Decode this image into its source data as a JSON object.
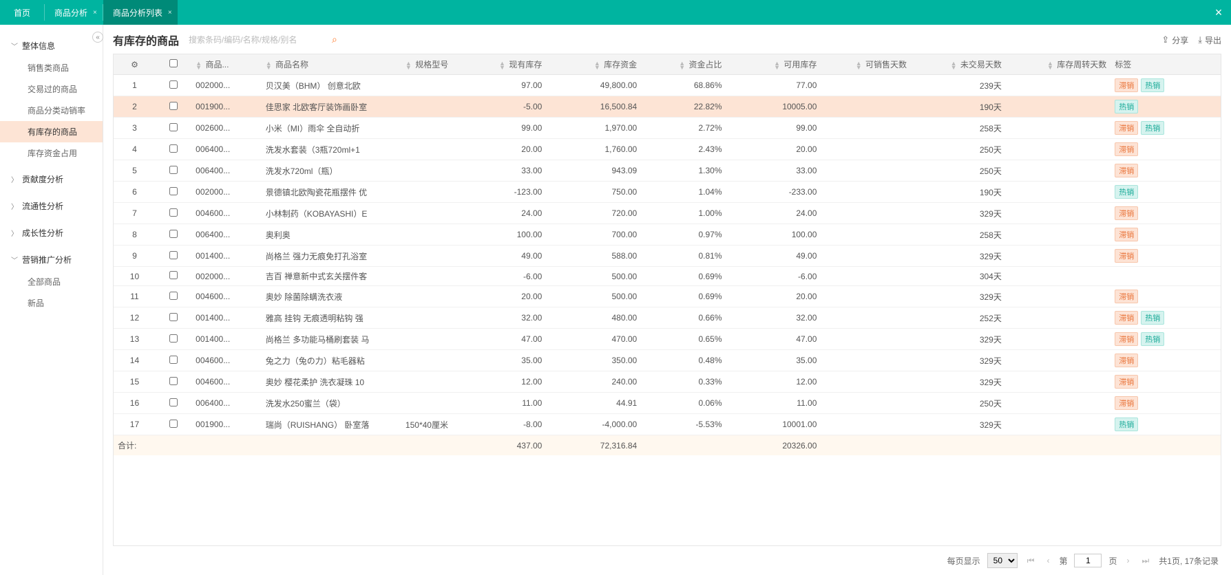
{
  "colors": {
    "tabbar_bg": "#00b4a0",
    "tab_active_bg": "#008a78",
    "side_active_bg": "#fde4d5",
    "row_highlight_bg": "#fde4d5",
    "footer_bg": "#fff8ef",
    "search_icon": "#ff7a2a",
    "tag_orange_bg": "#fde3d5",
    "tag_orange_fg": "#e9743a",
    "tag_teal_bg": "#d6f3ef",
    "tag_teal_fg": "#1aaa98"
  },
  "tabs": {
    "home": "首页",
    "items": [
      {
        "label": "商品分析",
        "active": false
      },
      {
        "label": "商品分析列表",
        "active": true
      }
    ]
  },
  "sidebar": {
    "groups": [
      {
        "title": "整体信息",
        "expanded": true,
        "items": [
          {
            "label": "销售类商品"
          },
          {
            "label": "交易过的商品"
          },
          {
            "label": "商品分类动销率"
          },
          {
            "label": "有库存的商品",
            "active": true
          },
          {
            "label": "库存资金占用"
          }
        ]
      },
      {
        "title": "贡献度分析",
        "expanded": false,
        "items": []
      },
      {
        "title": "流通性分析",
        "expanded": false,
        "items": []
      },
      {
        "title": "成长性分析",
        "expanded": false,
        "items": []
      },
      {
        "title": "营销推广分析",
        "expanded": true,
        "items": [
          {
            "label": "全部商品"
          },
          {
            "label": "新品"
          }
        ]
      }
    ]
  },
  "page": {
    "title": "有库存的商品",
    "search_placeholder": "搜索条码/编码/名称/规格/别名",
    "share": "分享",
    "export": "导出"
  },
  "table": {
    "columns": {
      "gear": "⚙",
      "code": "商品...",
      "name": "商品名称",
      "spec": "规格型号",
      "stock": "现有库存",
      "fund": "库存资金",
      "pct": "资金占比",
      "avail": "可用库存",
      "selldays": "可销售天数",
      "notxdays": "未交易天数",
      "turndays": "库存周转天数",
      "tags": "标签"
    },
    "rows": [
      {
        "idx": "1",
        "code": "002000...",
        "name": "贝汉美（BHM） 创意北欧",
        "spec": "",
        "stock": "97.00",
        "fund": "49,800.00",
        "pct": "68.86%",
        "avail": "77.00",
        "selldays": "",
        "notxdays": "239天",
        "turndays": "",
        "tags": [
          "滞销",
          "热销"
        ]
      },
      {
        "idx": "2",
        "code": "001900...",
        "name": "佳思家 北欧客厅装饰画卧室",
        "spec": "",
        "stock": "-5.00",
        "fund": "16,500.84",
        "pct": "22.82%",
        "avail": "10005.00",
        "selldays": "",
        "notxdays": "190天",
        "turndays": "",
        "tags": [
          "热销"
        ],
        "highlight": true
      },
      {
        "idx": "3",
        "code": "002600...",
        "name": "小米（MI）雨伞 全自动折",
        "spec": "",
        "stock": "99.00",
        "fund": "1,970.00",
        "pct": "2.72%",
        "avail": "99.00",
        "selldays": "",
        "notxdays": "258天",
        "turndays": "",
        "tags": [
          "滞销",
          "热销"
        ]
      },
      {
        "idx": "4",
        "code": "006400...",
        "name": "洗发水套装（3瓶720ml+1",
        "spec": "",
        "stock": "20.00",
        "fund": "1,760.00",
        "pct": "2.43%",
        "avail": "20.00",
        "selldays": "",
        "notxdays": "250天",
        "turndays": "",
        "tags": [
          "滞销"
        ]
      },
      {
        "idx": "5",
        "code": "006400...",
        "name": "洗发水720ml（瓶）",
        "spec": "",
        "stock": "33.00",
        "fund": "943.09",
        "pct": "1.30%",
        "avail": "33.00",
        "selldays": "",
        "notxdays": "250天",
        "turndays": "",
        "tags": [
          "滞销"
        ]
      },
      {
        "idx": "6",
        "code": "002000...",
        "name": "景德镇北欧陶瓷花瓶摆件 优",
        "spec": "",
        "stock": "-123.00",
        "fund": "750.00",
        "pct": "1.04%",
        "avail": "-233.00",
        "selldays": "",
        "notxdays": "190天",
        "turndays": "",
        "tags": [
          "热销"
        ]
      },
      {
        "idx": "7",
        "code": "004600...",
        "name": "小林制药（KOBAYASHI）E",
        "spec": "",
        "stock": "24.00",
        "fund": "720.00",
        "pct": "1.00%",
        "avail": "24.00",
        "selldays": "",
        "notxdays": "329天",
        "turndays": "",
        "tags": [
          "滞销"
        ]
      },
      {
        "idx": "8",
        "code": "006400...",
        "name": "奥利奥",
        "spec": "",
        "stock": "100.00",
        "fund": "700.00",
        "pct": "0.97%",
        "avail": "100.00",
        "selldays": "",
        "notxdays": "258天",
        "turndays": "",
        "tags": [
          "滞销"
        ]
      },
      {
        "idx": "9",
        "code": "001400...",
        "name": "尚格兰 强力无痕免打孔浴室",
        "spec": "",
        "stock": "49.00",
        "fund": "588.00",
        "pct": "0.81%",
        "avail": "49.00",
        "selldays": "",
        "notxdays": "329天",
        "turndays": "",
        "tags": [
          "滞销"
        ]
      },
      {
        "idx": "10",
        "code": "002000...",
        "name": "吉百 禅意新中式玄关摆件客",
        "spec": "",
        "stock": "-6.00",
        "fund": "500.00",
        "pct": "0.69%",
        "avail": "-6.00",
        "selldays": "",
        "notxdays": "304天",
        "turndays": "",
        "tags": []
      },
      {
        "idx": "11",
        "code": "004600...",
        "name": "奥妙 除菌除螨洗衣液",
        "spec": "",
        "stock": "20.00",
        "fund": "500.00",
        "pct": "0.69%",
        "avail": "20.00",
        "selldays": "",
        "notxdays": "329天",
        "turndays": "",
        "tags": [
          "滞销"
        ]
      },
      {
        "idx": "12",
        "code": "001400...",
        "name": "雅高 挂钩 无痕透明粘钩 强",
        "spec": "",
        "stock": "32.00",
        "fund": "480.00",
        "pct": "0.66%",
        "avail": "32.00",
        "selldays": "",
        "notxdays": "252天",
        "turndays": "",
        "tags": [
          "滞销",
          "热销"
        ]
      },
      {
        "idx": "13",
        "code": "001400...",
        "name": "尚格兰 多功能马桶刷套装 马",
        "spec": "",
        "stock": "47.00",
        "fund": "470.00",
        "pct": "0.65%",
        "avail": "47.00",
        "selldays": "",
        "notxdays": "329天",
        "turndays": "",
        "tags": [
          "滞销",
          "热销"
        ]
      },
      {
        "idx": "14",
        "code": "004600...",
        "name": "兔之力（兔の力）粘毛器粘",
        "spec": "",
        "stock": "35.00",
        "fund": "350.00",
        "pct": "0.48%",
        "avail": "35.00",
        "selldays": "",
        "notxdays": "329天",
        "turndays": "",
        "tags": [
          "滞销"
        ]
      },
      {
        "idx": "15",
        "code": "004600...",
        "name": "奥妙 樱花柔护 洗衣凝珠 10",
        "spec": "",
        "stock": "12.00",
        "fund": "240.00",
        "pct": "0.33%",
        "avail": "12.00",
        "selldays": "",
        "notxdays": "329天",
        "turndays": "",
        "tags": [
          "滞销"
        ]
      },
      {
        "idx": "16",
        "code": "006400...",
        "name": "洗发水250蜜兰（袋）",
        "spec": "",
        "stock": "11.00",
        "fund": "44.91",
        "pct": "0.06%",
        "avail": "11.00",
        "selldays": "",
        "notxdays": "250天",
        "turndays": "",
        "tags": [
          "滞销"
        ]
      },
      {
        "idx": "17",
        "code": "001900...",
        "name": "瑞尚（RUISHANG） 卧室落",
        "spec": "150*40厘米",
        "stock": "-8.00",
        "fund": "-4,000.00",
        "pct": "-5.53%",
        "avail": "10001.00",
        "selldays": "",
        "notxdays": "329天",
        "turndays": "",
        "tags": [
          "热销"
        ]
      }
    ],
    "footer": {
      "label": "合计:",
      "stock": "437.00",
      "fund": "72,316.84",
      "avail": "20326.00"
    },
    "tag_labels": {
      "滞销": "滞销",
      "热销": "热销"
    }
  },
  "pager": {
    "per_page_label": "每页显示",
    "per_page_value": "50",
    "page_prefix": "第",
    "page_value": "1",
    "page_suffix": "页",
    "summary": "共1页, 17条记录"
  }
}
